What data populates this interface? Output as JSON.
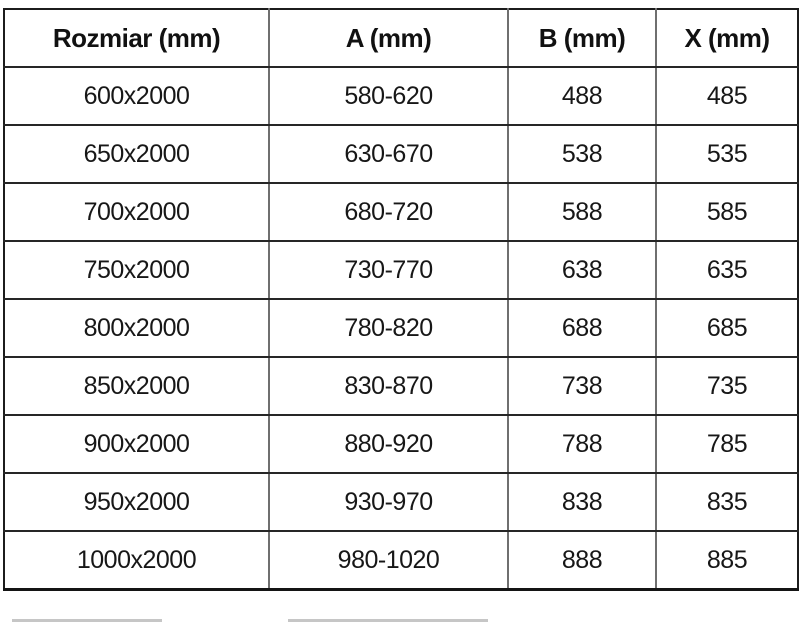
{
  "chart_data": {
    "type": "table",
    "title": "",
    "columns": [
      "Rozmiar (mm)",
      "A (mm)",
      "B (mm)",
      "X (mm)"
    ],
    "rows": [
      [
        "600x2000",
        "580-620",
        "488",
        "485"
      ],
      [
        "650x2000",
        "630-670",
        "538",
        "535"
      ],
      [
        "700x2000",
        "680-720",
        "588",
        "585"
      ],
      [
        "750x2000",
        "730-770",
        "638",
        "635"
      ],
      [
        "800x2000",
        "780-820",
        "688",
        "685"
      ],
      [
        "850x2000",
        "830-870",
        "738",
        "735"
      ],
      [
        "900x2000",
        "880-920",
        "788",
        "785"
      ],
      [
        "950x2000",
        "930-970",
        "838",
        "835"
      ],
      [
        "1000x2000",
        "980-1020",
        "888",
        "885"
      ]
    ]
  },
  "colors": {
    "background": "#ffffff",
    "text": "#171717",
    "header_text": "#111111",
    "border_horizontal": "#262626",
    "border_vertical": "#6f6f6f",
    "border_outer": "#1c1c1c"
  }
}
